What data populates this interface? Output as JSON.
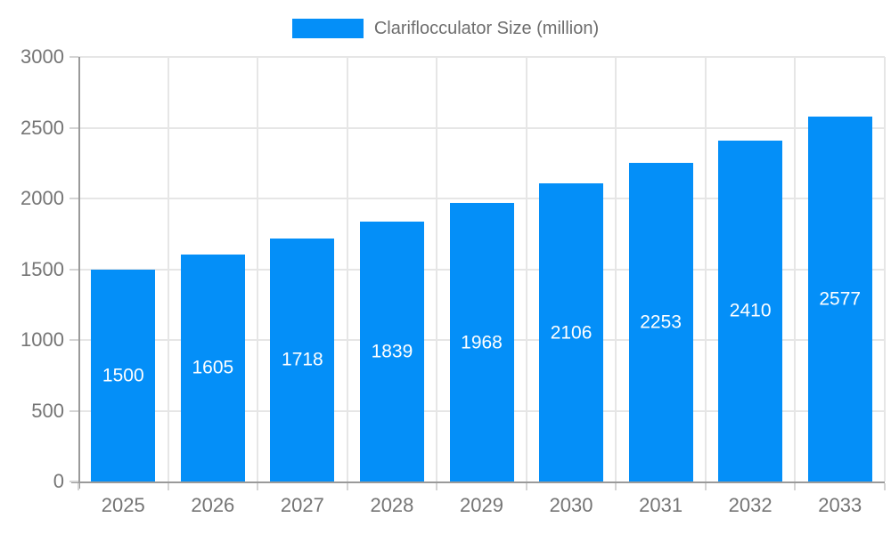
{
  "legend": {
    "label": "Clariflocculator Size (million)"
  },
  "chart_data": {
    "type": "bar",
    "title": "",
    "xlabel": "",
    "ylabel": "",
    "categories": [
      "2025",
      "2026",
      "2027",
      "2028",
      "2029",
      "2030",
      "2031",
      "2032",
      "2033"
    ],
    "series": [
      {
        "name": "Clariflocculator Size (million)",
        "values": [
          1500,
          1605,
          1718,
          1839,
          1968,
          2106,
          2253,
          2410,
          2577
        ]
      }
    ],
    "value_labels": [
      "1500",
      "1605",
      "1718",
      "1839",
      "1968",
      "2106",
      "2253",
      "2410",
      "2577"
    ],
    "ylim": [
      0,
      3000
    ],
    "ytick_step": 500,
    "ytick_labels": [
      "0",
      "500",
      "1000",
      "1500",
      "2000",
      "2500",
      "3000"
    ],
    "grid": true,
    "legend_position": "top",
    "colors": {
      "bar": "#048ff8",
      "bar_value_text": "#ffffff",
      "grid": "#e6e6e6",
      "axis": "#9a9a9a",
      "tick": "#d4d4d4",
      "tick_text": "#757575",
      "legend_text": "#6d6d6d"
    }
  }
}
